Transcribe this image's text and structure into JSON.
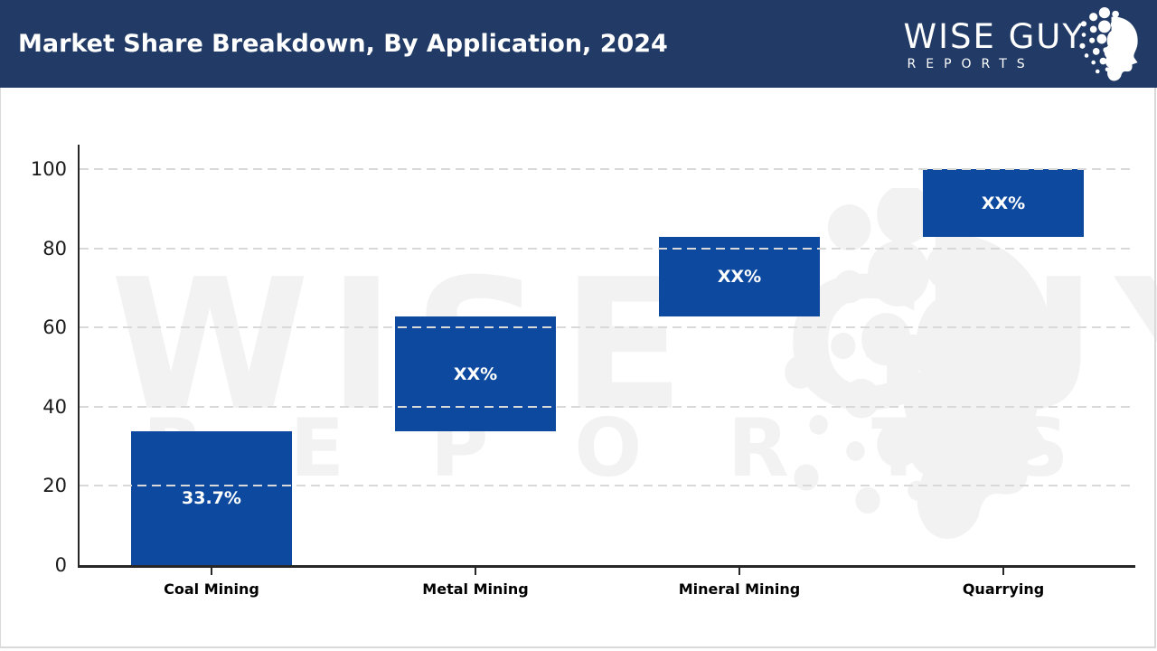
{
  "header": {
    "title": "Market Share Breakdown, By Application, 2024",
    "logo": {
      "line1": "WISE GUY",
      "line2": "REPORTS"
    }
  },
  "watermark": {
    "line1": "WISE GUY",
    "line2": "REPORTS"
  },
  "colors": {
    "header_bg": "#213a66",
    "bar": "#0d4a9f",
    "bar_label": "#ffffff",
    "grid": "#d9d9d9",
    "axis": "#262626",
    "watermark": "#f2f2f2"
  },
  "chart_data": {
    "type": "bar",
    "subtype": "waterfall",
    "title": "Market Share Breakdown, By Application, 2024",
    "categories": [
      "Coal Mining",
      "Metal Mining",
      "Mineral Mining",
      "Quarrying"
    ],
    "segments": [
      {
        "category": "Coal Mining",
        "start": 0,
        "end": 33.7,
        "label": "33.7%"
      },
      {
        "category": "Metal Mining",
        "start": 33.7,
        "end": 62.8,
        "label": "XX%"
      },
      {
        "category": "Mineral Mining",
        "start": 62.8,
        "end": 82.8,
        "label": "XX%"
      },
      {
        "category": "Quarrying",
        "start": 82.8,
        "end": 100,
        "label": "XX%"
      }
    ],
    "xlabel": "",
    "ylabel": "",
    "ylim": [
      0,
      100
    ],
    "yticks": [
      0,
      20,
      40,
      60,
      80,
      100
    ],
    "grid": "horizontal-dashed-over-bars",
    "legend": false,
    "bar_color": "#0d4a9f",
    "label_color": "#ffffff"
  }
}
